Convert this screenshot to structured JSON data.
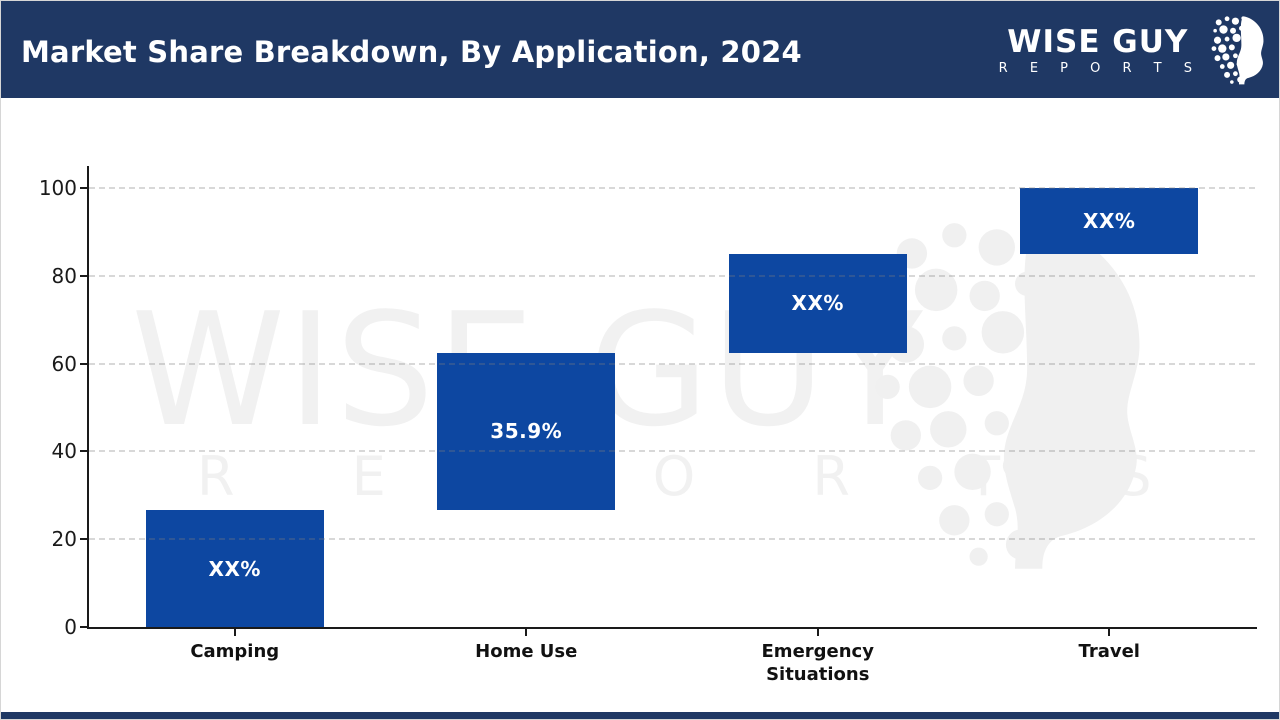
{
  "header": {
    "title": "Market Share Breakdown, By Application, 2024",
    "bg_color": "#1f3864",
    "text_color": "#ffffff",
    "logo": {
      "name": "WISE GUY",
      "sub": "R E P O R T S"
    }
  },
  "watermark": {
    "name": "WISE GUY",
    "sub": "R E P O R T S"
  },
  "chart_data": {
    "type": "bar",
    "variant": "waterfall",
    "title": "Market Share Breakdown, By Application, 2024",
    "categories": [
      "Camping",
      "Home Use",
      "Emergency Situations",
      "Travel"
    ],
    "xtick_labels": [
      "Camping",
      "Home Use",
      "Emergency\nSituations",
      "Travel"
    ],
    "segments": [
      {
        "category": "Camping",
        "start": 0,
        "end": 26.6,
        "size": 26.6,
        "value_label": "XX%"
      },
      {
        "category": "Home Use",
        "start": 26.6,
        "end": 62.5,
        "size": 35.9,
        "value_label": "35.9%"
      },
      {
        "category": "Emergency Situations",
        "start": 62.5,
        "end": 85,
        "size": 22.5,
        "value_label": "XX%"
      },
      {
        "category": "Travel",
        "start": 85,
        "end": 100,
        "size": 15,
        "value_label": "XX%"
      }
    ],
    "yticks": [
      0,
      20,
      40,
      60,
      80,
      100
    ],
    "ylim": [
      0,
      105
    ],
    "xlabel": "",
    "ylabel": "",
    "legend": null,
    "grid": "horizontal-dashed",
    "bar_color": "#0d47a1",
    "bar_label_color": "#ffffff",
    "axis_color": "#1a1a1a",
    "grid_color": "#d9d9d9"
  },
  "footer": {
    "bg_color": "#1f3864"
  }
}
